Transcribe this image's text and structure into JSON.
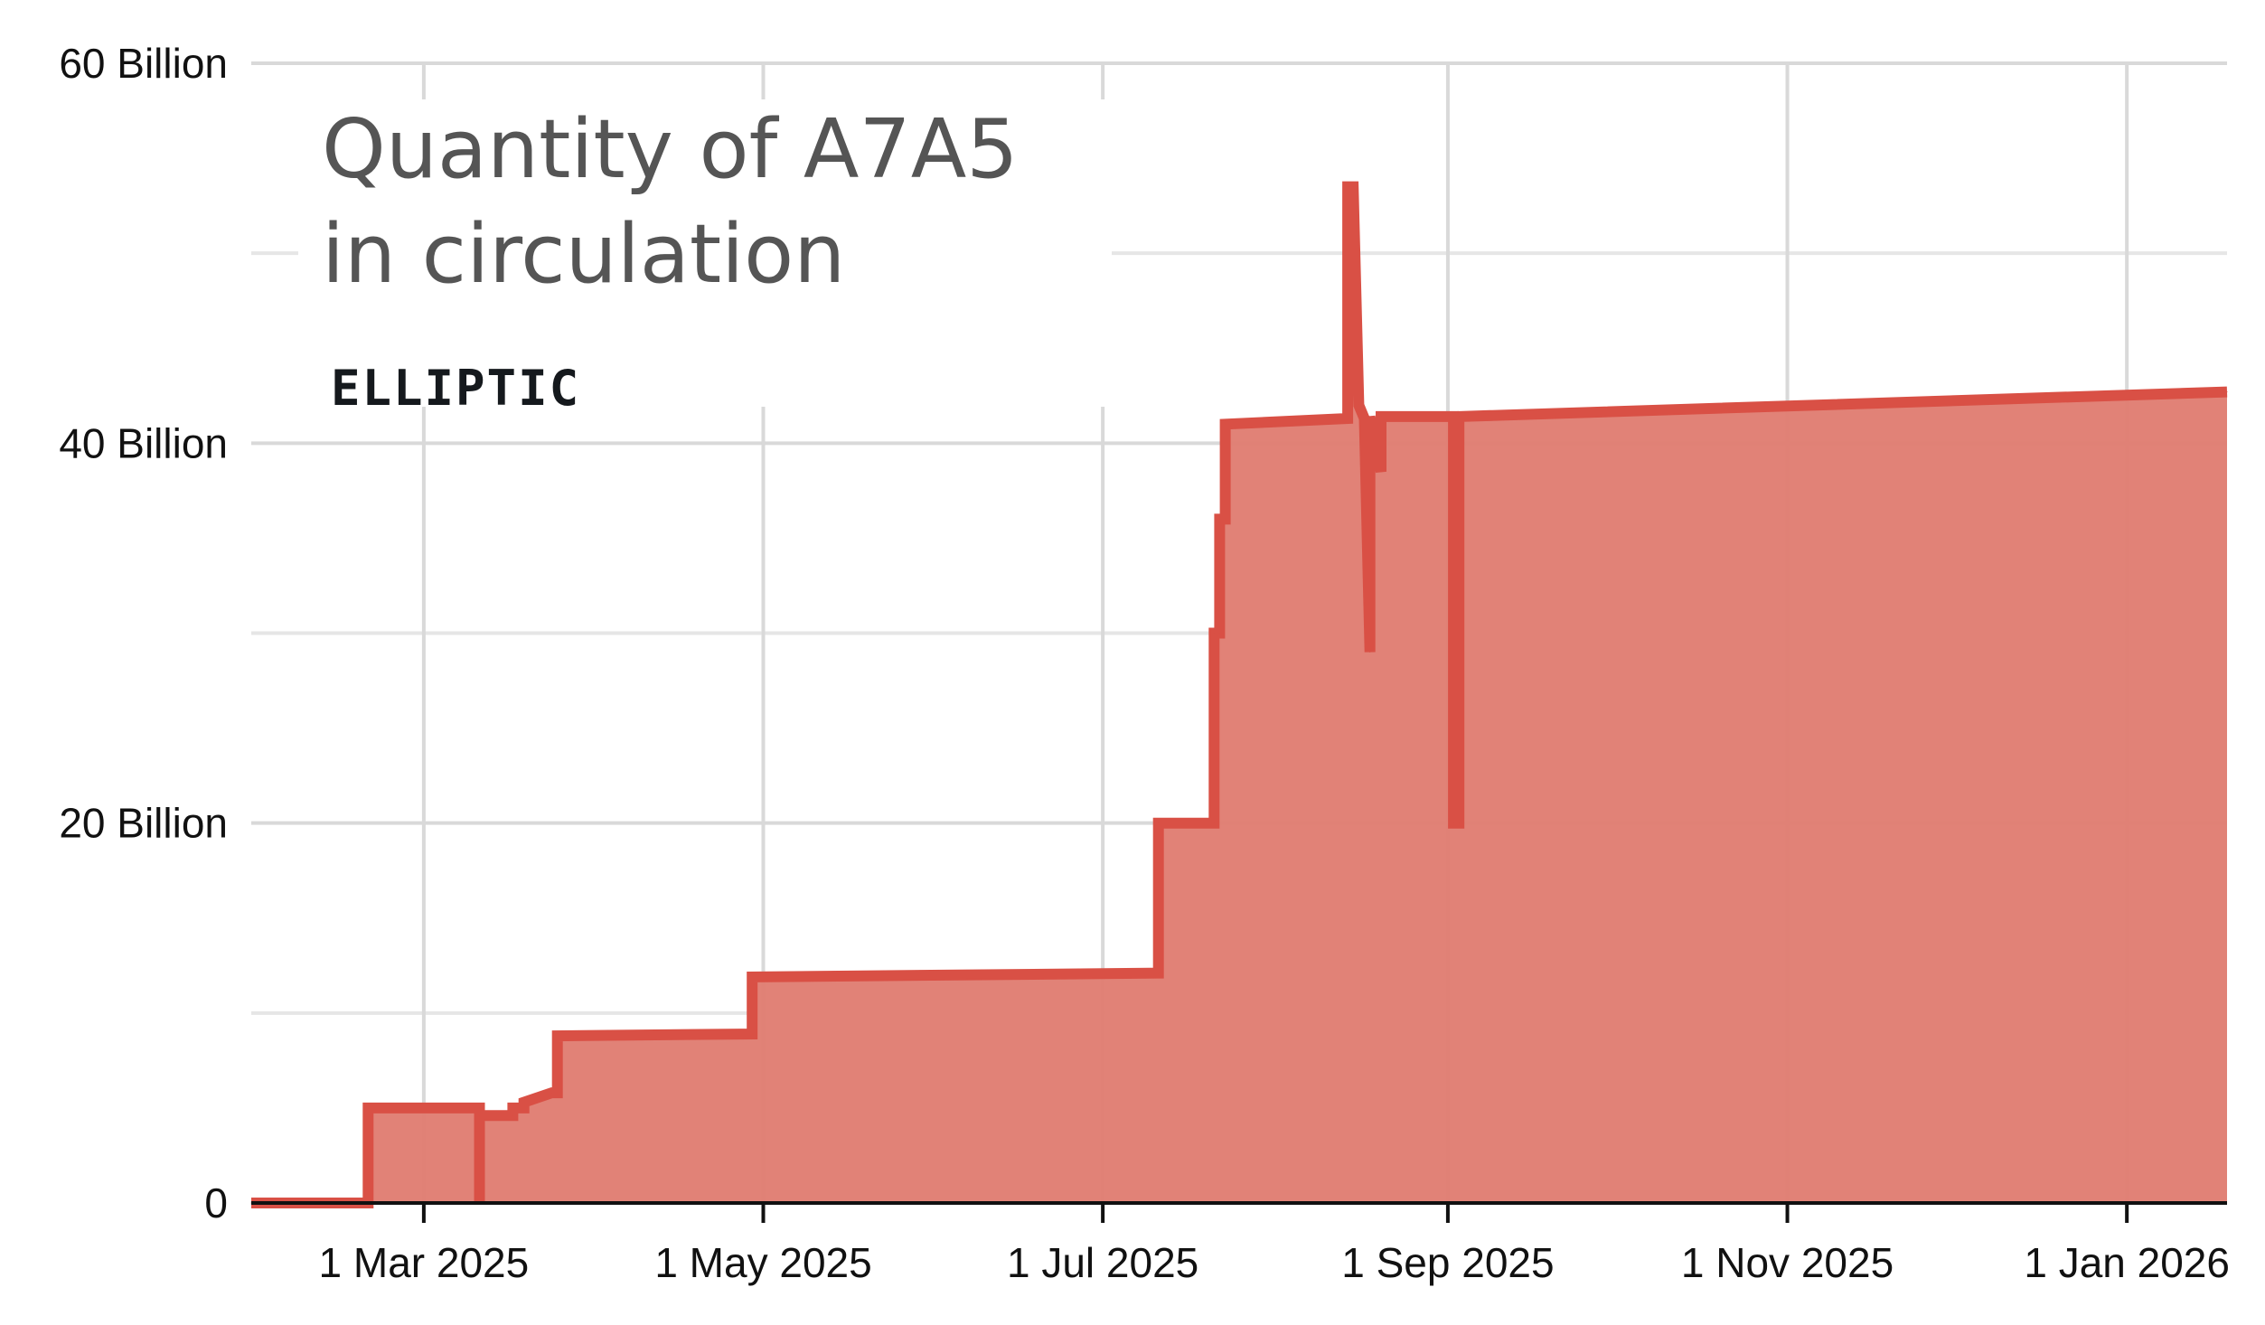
{
  "chart_data": {
    "type": "area",
    "title": "Quantity of A7A5 in circulation",
    "title_lines": [
      "Quantity of A7A5",
      "in circulation"
    ],
    "brand": "ELLIPTIC",
    "xlabel": "",
    "ylabel": "",
    "xlim": [
      "2025-01-29",
      "2026-01-19"
    ],
    "ylim": [
      0,
      60000000000
    ],
    "y_ticks": [
      {
        "value": 0,
        "label": "0"
      },
      {
        "value": 20000000000,
        "label": "20 Billion"
      },
      {
        "value": 40000000000,
        "label": "40 Billion"
      },
      {
        "value": 60000000000,
        "label": "60 Billion"
      }
    ],
    "y_minor_grid": [
      10000000000,
      30000000000,
      50000000000
    ],
    "x_ticks": [
      {
        "date": "2025-03-01",
        "label": "1 Mar 2025"
      },
      {
        "date": "2025-05-01",
        "label": "1 May 2025"
      },
      {
        "date": "2025-07-01",
        "label": "1 Jul 2025"
      },
      {
        "date": "2025-09-01",
        "label": "1 Sep 2025"
      },
      {
        "date": "2025-11-01",
        "label": "1 Nov 2025"
      },
      {
        "date": "2026-01-01",
        "label": "1 Jan 2026"
      }
    ],
    "grid": true,
    "colors": {
      "line": "#d95045",
      "fill": "#e07e73",
      "grid": "#d9d9d9",
      "axis": "#111111"
    },
    "series": [
      {
        "points": [
          [
            "2025-01-29",
            0
          ],
          [
            "2025-02-19",
            0
          ],
          [
            "2025-02-19",
            5000000000.0
          ],
          [
            "2025-03-11",
            5000000000.0
          ],
          [
            "2025-03-11",
            0
          ],
          [
            "2025-03-11",
            4600000000.0
          ],
          [
            "2025-03-17",
            4600000000.0
          ],
          [
            "2025-03-17",
            5000000000.0
          ],
          [
            "2025-03-19",
            5000000000.0
          ],
          [
            "2025-03-19",
            5300000000.0
          ],
          [
            "2025-03-24",
            5800000000.0
          ],
          [
            "2025-03-25",
            5800000000.0
          ],
          [
            "2025-03-25",
            8800000000.0
          ],
          [
            "2025-04-29",
            8900000000.0
          ],
          [
            "2025-04-29",
            11900000000.0
          ],
          [
            "2025-07-11",
            12100000000.0
          ],
          [
            "2025-07-11",
            20000000000.0
          ],
          [
            "2025-07-21",
            20000000000.0
          ],
          [
            "2025-07-21",
            30000000000.0
          ],
          [
            "2025-07-22",
            30000000000.0
          ],
          [
            "2025-07-22",
            36000000000.0
          ],
          [
            "2025-07-23",
            36000000000.0
          ],
          [
            "2025-07-23",
            41000000000.0
          ],
          [
            "2025-08-14",
            41300000000.0
          ],
          [
            "2025-08-14",
            53500000000.0
          ],
          [
            "2025-08-15",
            53500000000.0
          ],
          [
            "2025-08-16",
            42000000000.0
          ],
          [
            "2025-08-17",
            41300000000.0
          ],
          [
            "2025-08-18",
            29000000000.0
          ],
          [
            "2025-08-18",
            41400000000.0
          ],
          [
            "2025-08-20",
            38500000000.0
          ],
          [
            "2025-08-20",
            41400000000.0
          ],
          [
            "2025-09-02",
            41400000000.0
          ],
          [
            "2025-09-02",
            20000000000.0
          ],
          [
            "2025-09-03",
            20000000000.0
          ],
          [
            "2025-09-03",
            41400000000.0
          ],
          [
            "2026-01-19",
            42700000000.0
          ]
        ]
      }
    ]
  }
}
